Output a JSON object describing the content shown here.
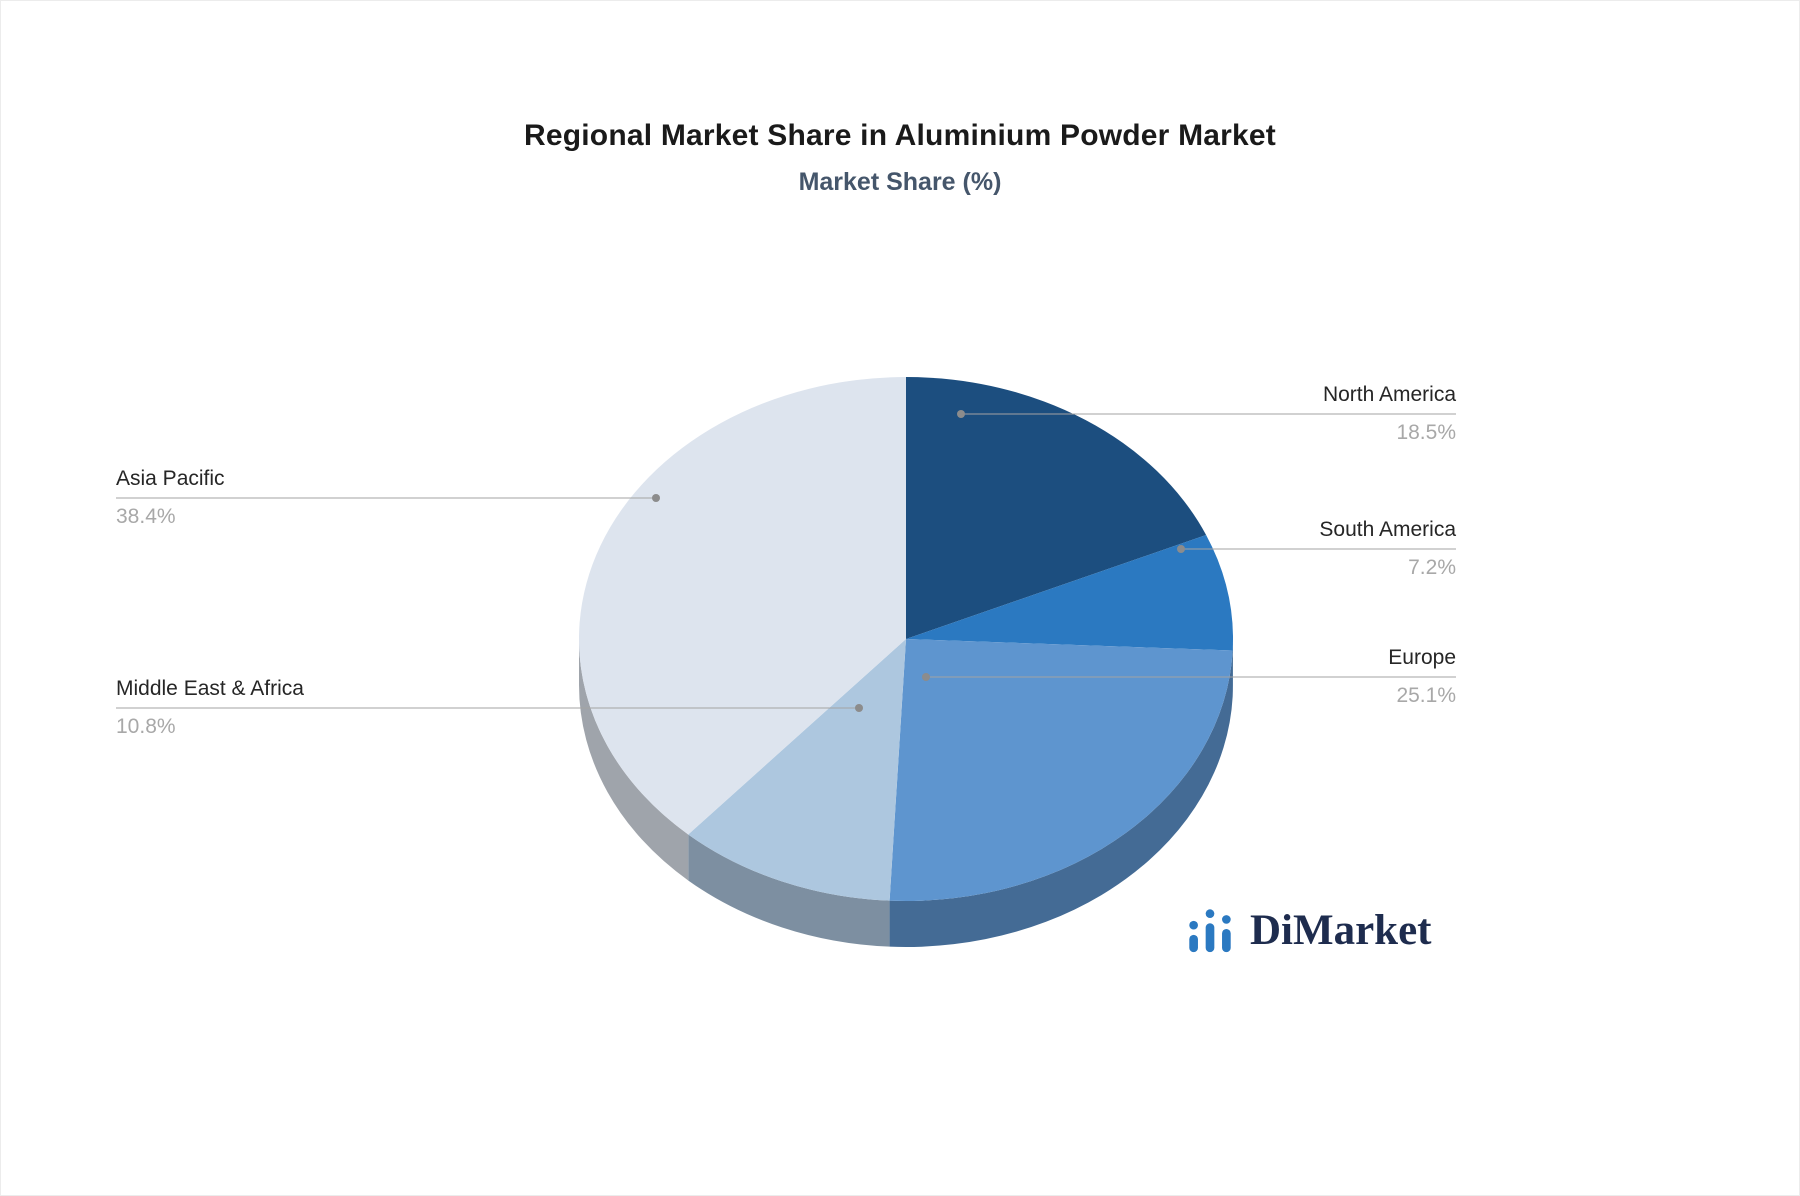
{
  "title": "Regional Market Share in Aluminium Powder Market",
  "subtitle": "Market Share (%)",
  "brand": {
    "name": "DiMarket",
    "logo_icon": "bar-chart-logo-icon",
    "text_color": "#1e2c4e",
    "icon_color": "#2b79c1"
  },
  "chart_data": {
    "type": "pie",
    "title": "Regional Market Share in Aluminium Powder Market",
    "subtitle": "Market Share (%)",
    "unit": "%",
    "style": "3d-pie",
    "start_angle_deg": -90,
    "direction": "clockwise",
    "legend": "none",
    "labeling": "leader-lines-with-name-and-percent",
    "segments": [
      {
        "label": "North America",
        "value": 18.5,
        "display_value": "18.5%",
        "color": "#1c4e7f",
        "label_side": "right"
      },
      {
        "label": "South America",
        "value": 7.2,
        "display_value": "7.2%",
        "color": "#2b79c1",
        "label_side": "right"
      },
      {
        "label": "Europe",
        "value": 25.1,
        "display_value": "25.1%",
        "color": "#5e95cf",
        "label_side": "right"
      },
      {
        "label": "Middle East & Africa",
        "value": 10.8,
        "display_value": "10.8%",
        "color": "#adc7df",
        "label_side": "left"
      },
      {
        "label": "Asia Pacific",
        "value": 38.4,
        "display_value": "38.4%",
        "color": "#dde4ee",
        "label_side": "left"
      }
    ]
  }
}
